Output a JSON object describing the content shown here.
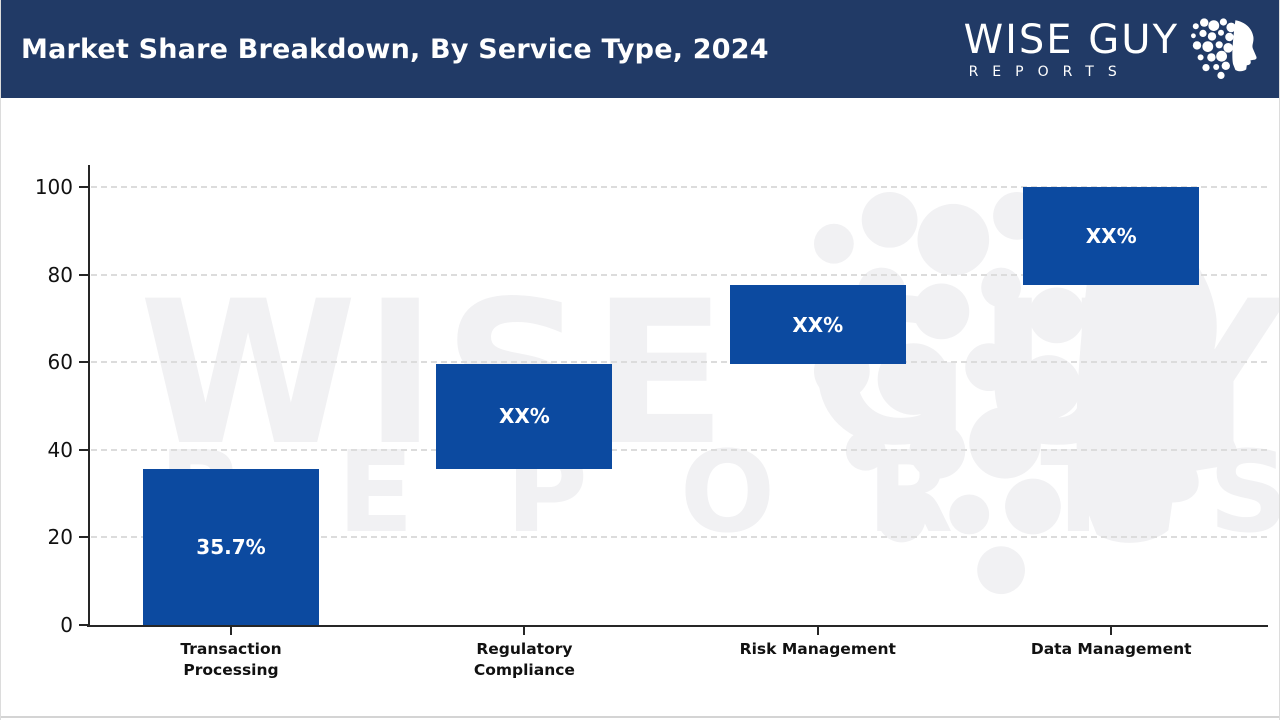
{
  "header": {
    "title": "Market Share Breakdown, By Service Type, 2024",
    "logo": {
      "line1": "WISE GUY",
      "line2": "REPORTS"
    }
  },
  "watermark": {
    "line1": "WISE GUY",
    "line2": "REPORTS"
  },
  "colors": {
    "header_bg": "#213a66",
    "bar": "#0c4aa0",
    "bar_label": "#ffffff",
    "grid": "#dcdcdc",
    "axis": "#262626",
    "watermark": "#f1f1f3"
  },
  "chart_data": {
    "type": "bar",
    "variant": "waterfall",
    "title": "Market Share Breakdown, By Service Type, 2024",
    "categories": [
      "Transaction Processing",
      "Regulatory Compliance",
      "Risk Management",
      "Data Management"
    ],
    "category_lines": [
      [
        "Transaction",
        "Processing"
      ],
      [
        "Regulatory",
        "Compliance"
      ],
      [
        "Risk Management"
      ],
      [
        "Data Management"
      ]
    ],
    "bars": [
      {
        "category": "Transaction Processing",
        "start": 0,
        "end": 35.7,
        "label": "35.7%"
      },
      {
        "category": "Regulatory Compliance",
        "start": 35.7,
        "end": 59.5,
        "label": "XX%"
      },
      {
        "category": "Risk Management",
        "start": 59.5,
        "end": 77.7,
        "label": "XX%"
      },
      {
        "category": "Data Management",
        "start": 77.7,
        "end": 100,
        "label": "XX%"
      }
    ],
    "xlabel": "",
    "ylabel": "",
    "yticks": [
      0,
      20,
      40,
      60,
      80,
      100
    ],
    "ylim": [
      0,
      105
    ],
    "grid": {
      "axis": "y",
      "style": "dashed"
    },
    "legend": null
  }
}
